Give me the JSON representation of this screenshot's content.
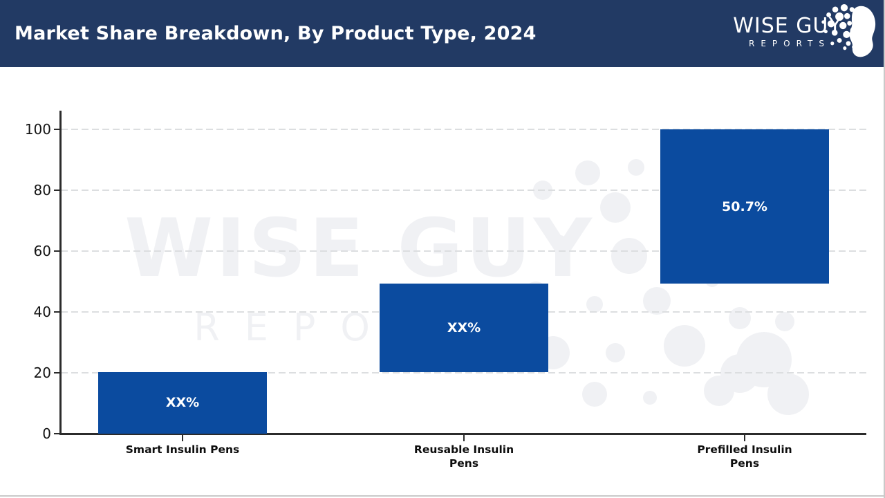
{
  "header": {
    "title": "Market Share Breakdown, By Product Type, 2024",
    "logo": {
      "line1": "WISE GUY",
      "line2": "REPORTS"
    }
  },
  "watermark": {
    "line1": "WISE GUY",
    "line2": "REPORTS"
  },
  "colors": {
    "header_bg": "#223a64",
    "bar_fill": "#0b4b9f",
    "bar_label_text": "#ffffff",
    "axis": "#2b2b2b",
    "gridline": "#dcdee0",
    "tick_label": "#141414",
    "page_border": "#c9c9c9",
    "watermark": "#f0f1f4"
  },
  "chart_data": {
    "type": "bar",
    "variant": "stacked-waterfall",
    "title": "Market Share Breakdown, By Product Type, 2024",
    "categories": [
      "Smart Insulin Pens",
      "Reusable Insulin Pens",
      "Prefilled Insulin Pens"
    ],
    "category_lines": [
      [
        "Smart Insulin Pens"
      ],
      [
        "Reusable Insulin",
        "Pens"
      ],
      [
        "Prefilled Insulin",
        "Pens"
      ]
    ],
    "segments": [
      {
        "category": "Smart Insulin Pens",
        "start": 0,
        "end": 20.3,
        "value": 20.3,
        "label": "XX%"
      },
      {
        "category": "Reusable Insulin Pens",
        "start": 20.3,
        "end": 49.3,
        "value": 29.0,
        "label": "XX%"
      },
      {
        "category": "Prefilled Insulin Pens",
        "start": 49.3,
        "end": 100,
        "value": 50.7,
        "label": "50.7%"
      }
    ],
    "yticks": [
      0,
      20,
      40,
      60,
      80,
      100
    ],
    "ylim": [
      0,
      106
    ],
    "grid": "horizontal-dashed",
    "legend": false,
    "xlabel": "",
    "ylabel": ""
  }
}
